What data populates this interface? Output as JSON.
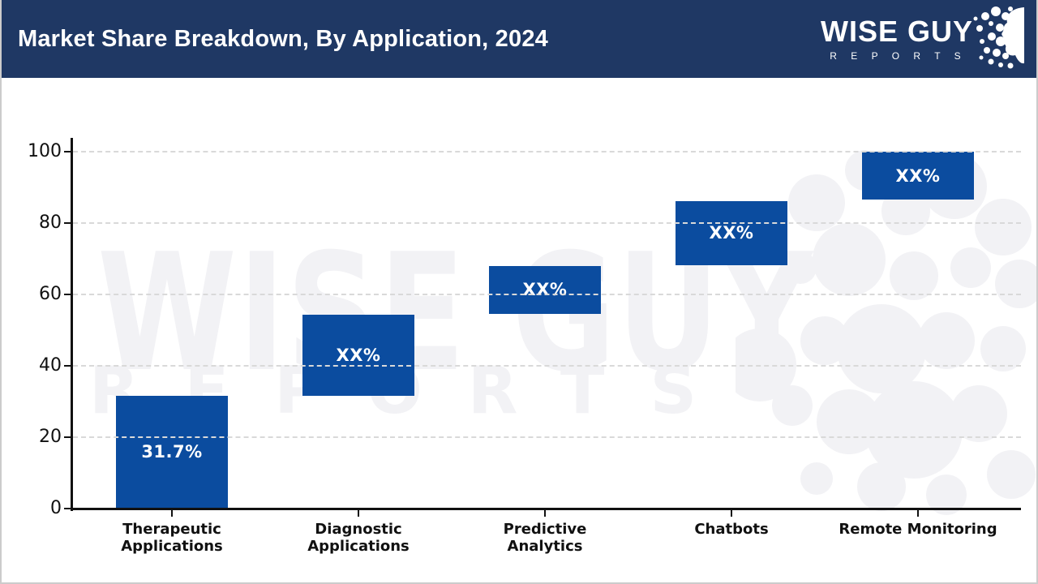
{
  "header": {
    "title": "Market Share Breakdown, By Application, 2024",
    "logo": {
      "line1": "WISE GUY",
      "line2": "R E P O R T S"
    }
  },
  "watermark": {
    "line1": "WISE GUY",
    "line2": "REPORTS"
  },
  "colors": {
    "header_bg": "#1f3864",
    "bar": "#0b4c9f",
    "bar_label": "#ffffff",
    "grid": "#d9d9d9",
    "axis": "#111111",
    "watermark": "#f2f2f5"
  },
  "chart_data": {
    "type": "bar",
    "subtype": "waterfall",
    "title": "Market Share Breakdown, By Application, 2024",
    "categories": [
      "Therapeutic Applications",
      "Diagnostic Applications",
      "Predictive Analytics",
      "Chatbots",
      "Remote Monitoring"
    ],
    "segments": [
      {
        "category": "Therapeutic Applications",
        "lines": [
          "Therapeutic",
          "Applications"
        ],
        "base": 0,
        "top": 31.7,
        "label": "31.7%"
      },
      {
        "category": "Diagnostic Applications",
        "lines": [
          "Diagnostic",
          "Applications"
        ],
        "base": 31.7,
        "top": 54.3,
        "label": "XX%"
      },
      {
        "category": "Predictive Analytics",
        "lines": [
          "Predictive",
          "Analytics"
        ],
        "base": 54.5,
        "top": 68.0,
        "label": "XX%"
      },
      {
        "category": "Chatbots",
        "lines": [
          "Chatbots"
        ],
        "base": 68.2,
        "top": 86.2,
        "label": "XX%"
      },
      {
        "category": "Remote Monitoring",
        "lines": [
          "Remote Monitoring"
        ],
        "base": 86.5,
        "top": 100,
        "label": "XX%"
      }
    ],
    "ylim": [
      0,
      100
    ],
    "yticks": [
      0,
      20,
      40,
      60,
      80,
      100
    ],
    "xlabel": "",
    "ylabel": "",
    "grid": "horizontal-dashed-over-bars",
    "legend": "none"
  }
}
